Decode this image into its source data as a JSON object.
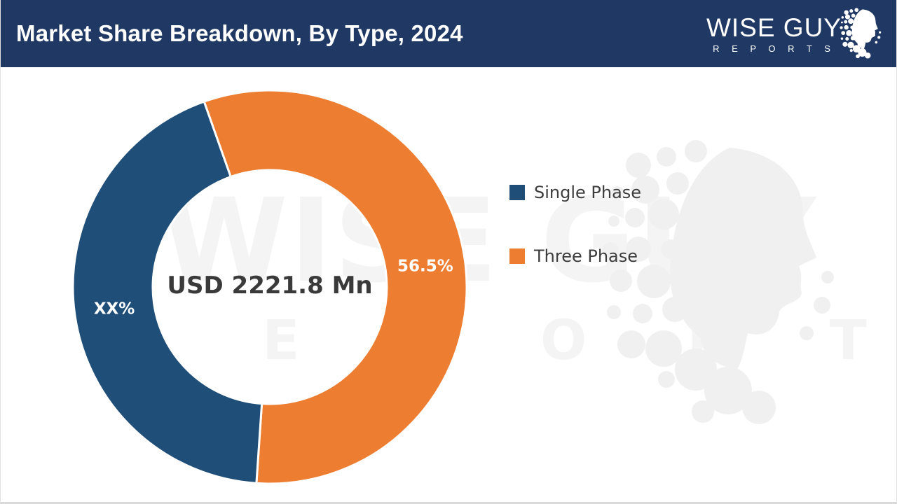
{
  "header": {
    "title": "Market Share Breakdown, By Type, 2024",
    "background": "#1f3864",
    "logo": {
      "name": "WISE GUY",
      "sub": "R E P O R T S",
      "icon": "dotted-face-profile-icon"
    }
  },
  "chart_data": {
    "type": "pie",
    "variant": "donut",
    "title": "Market Share Breakdown, By Type, 2024",
    "center_label": "USD 2221.8 Mn",
    "start_angle_deg": -19.5,
    "direction": "clockwise",
    "legend_position": "right",
    "segments": [
      {
        "label": "Three Phase",
        "value": 56.5,
        "display_label": "56.5%",
        "color": "#ed7d31"
      },
      {
        "label": "Single Phase",
        "value": 43.5,
        "display_label": "XX%",
        "color": "#1f4e78"
      }
    ],
    "legend": {
      "items": [
        {
          "label": "Single Phase",
          "color": "#1f4e78"
        },
        {
          "label": "Three Phase",
          "color": "#ed7d31"
        }
      ]
    }
  },
  "watermark": {
    "line1": "WISE GUY",
    "line2": "R E P O R T S",
    "icon": "dotted-face-profile-icon"
  },
  "colors": {
    "header_bg": "#1f3864",
    "single_phase_blue": "#1f4e78",
    "three_phase_orange": "#ed7d31",
    "text_dark": "#3a3a3a",
    "watermark_gray": "#f2f2f2",
    "border_gray": "#d9d9d9"
  }
}
